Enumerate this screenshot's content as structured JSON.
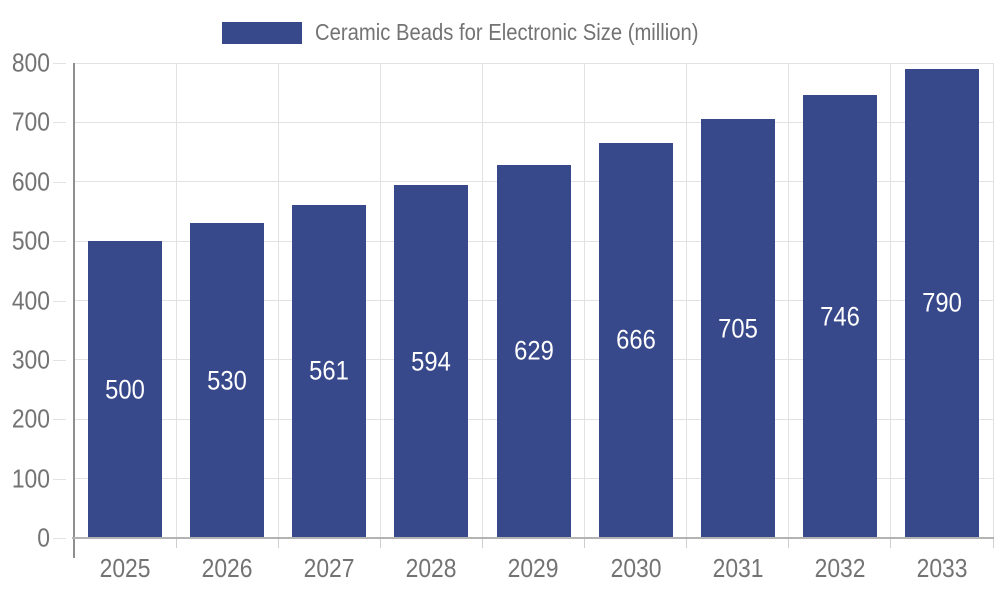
{
  "chart_data": {
    "type": "bar",
    "title": "Ceramic Beads for Electronic Size (million)",
    "categories": [
      "2025",
      "2026",
      "2027",
      "2028",
      "2029",
      "2030",
      "2031",
      "2032",
      "2033"
    ],
    "values": [
      500,
      530,
      561,
      594,
      629,
      666,
      705,
      746,
      790
    ],
    "xlabel": "",
    "ylabel": "",
    "ylim": [
      0,
      800
    ],
    "ytick_step": 100,
    "yticks": [
      0,
      100,
      200,
      300,
      400,
      500,
      600,
      700,
      800
    ],
    "grid": true,
    "legend_position": "top",
    "legend_label": "Ceramic Beads for Electronic Size (million)",
    "colors": {
      "bar": "#37488b",
      "value_label": "#ffffff",
      "axis_text": "#737373",
      "gridline": "#e2e2e2",
      "y_axis_line": "#8f8f8f",
      "x_axis_line": "#b3b3b3",
      "tick_mark": "#cfcfcf",
      "background": "#ffffff"
    }
  }
}
